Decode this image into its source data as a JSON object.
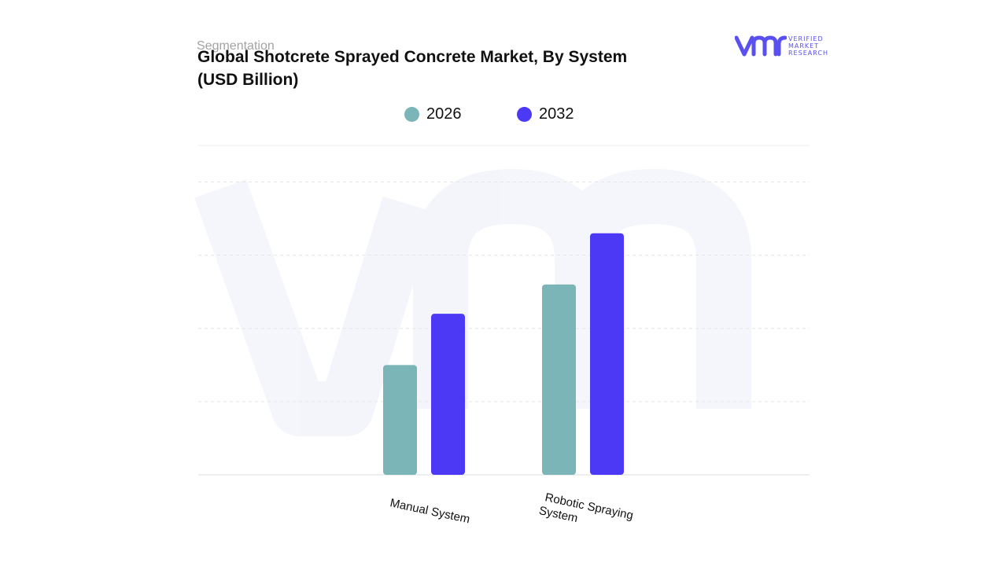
{
  "header": {
    "segmentation": "Segmentation",
    "title_line1": "Global Shotcrete Sprayed Concrete Market, By System",
    "title_line2": "(USD Billion)"
  },
  "logo": {
    "mark": "vmr",
    "line1": "VERIFIED",
    "line2": "MARKET",
    "line3": "RESEARCH",
    "color": "#5a50f0"
  },
  "legend": [
    {
      "label": "2026",
      "color": "#7bb5b7"
    },
    {
      "label": "2032",
      "color": "#4b39f6"
    }
  ],
  "chart_data": {
    "type": "bar",
    "title": "Global Shotcrete Sprayed Concrete Market, By System (USD Billion)",
    "categories": [
      "Manual System",
      "Robotic Spraying System"
    ],
    "series": [
      {
        "name": "2026",
        "values": [
          1.5,
          2.6
        ],
        "color": "#7bb5b7"
      },
      {
        "name": "2032",
        "values": [
          2.2,
          3.3
        ],
        "color": "#4b39f6"
      }
    ],
    "ylim": [
      0,
      4.5
    ],
    "grid": true,
    "legend_position": "top-center"
  }
}
